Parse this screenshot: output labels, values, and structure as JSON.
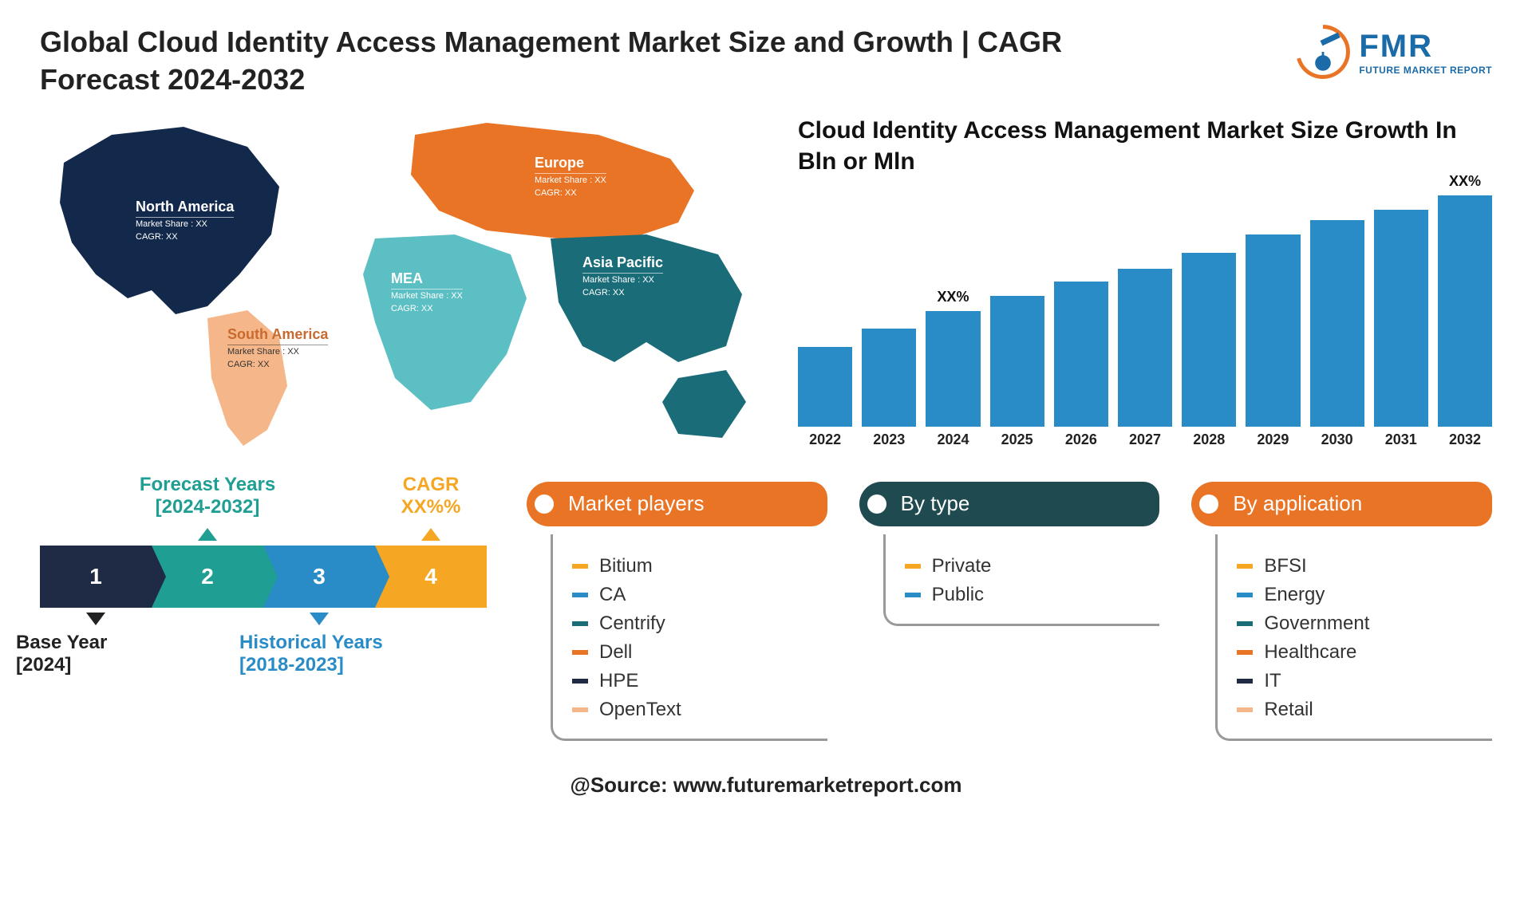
{
  "title": "Global Cloud Identity Access Management Market Size and Growth | CAGR Forecast 2024-2032",
  "logo": {
    "main": "FMR",
    "sub": "FUTURE MARKET REPORT",
    "icon_color_outer": "#e97425",
    "icon_color_inner": "#1a6ba8"
  },
  "map": {
    "regions": [
      {
        "key": "north_america",
        "name": "North America",
        "share": "Market Share : XX",
        "cagr": "CAGR: XX",
        "color": "#13294b"
      },
      {
        "key": "south_america",
        "name": "South America",
        "share": "Market Share : XX",
        "cagr": "CAGR: XX",
        "color": "#f5b78a"
      },
      {
        "key": "europe",
        "name": "Europe",
        "share": "Market Share : XX",
        "cagr": "CAGR: XX",
        "color": "#e97425"
      },
      {
        "key": "mea",
        "name": "MEA",
        "share": "Market Share : XX",
        "cagr": "CAGR: XX",
        "color": "#5bbfc4"
      },
      {
        "key": "asia_pacific",
        "name": "Asia Pacific",
        "share": "Market Share : XX",
        "cagr": "CAGR: XX",
        "color": "#1a6d78"
      }
    ]
  },
  "chart": {
    "title": "Cloud Identity Access Management Market Size Growth In\nBln or Mln",
    "type": "bar",
    "categories": [
      "2022",
      "2023",
      "2024",
      "2025",
      "2026",
      "2027",
      "2028",
      "2029",
      "2030",
      "2031",
      "2032"
    ],
    "values": [
      110,
      135,
      160,
      180,
      200,
      218,
      240,
      265,
      285,
      300,
      320
    ],
    "max_value": 320,
    "bar_color": "#2a8cc7",
    "annotations": [
      {
        "index": 2,
        "text": "XX%"
      },
      {
        "index": 10,
        "text": "XX%"
      }
    ],
    "label_fontsize": 18,
    "label_fontweight": 700
  },
  "timeline": {
    "top_labels": [
      {
        "index": 1,
        "title": "Forecast Years",
        "sub": "[2024-2032]",
        "color": "#1f9e94"
      },
      {
        "index": 3,
        "title": "CAGR",
        "sub": "XX%%",
        "color": "#f5a623"
      }
    ],
    "bottom_labels": [
      {
        "index": 0,
        "title": "Base Year",
        "sub": "[2024]",
        "color": "#222"
      },
      {
        "index": 2,
        "title": "Historical Years",
        "sub": "[2018-2023]",
        "color": "#2a8cc7"
      }
    ],
    "segments": [
      {
        "num": "1",
        "color": "#1f2a44"
      },
      {
        "num": "2",
        "color": "#1f9e94"
      },
      {
        "num": "3",
        "color": "#2a8cc7"
      },
      {
        "num": "4",
        "color": "#f5a623"
      }
    ]
  },
  "columns": [
    {
      "header": "Market players",
      "header_color": "#e97425",
      "items": [
        "Bitium",
        "CA",
        "Centrify",
        "Dell",
        "HPE",
        "OpenText"
      ],
      "tick_colors": [
        "#f5a623",
        "#2a8cc7",
        "#1a6d78",
        "#e97425",
        "#1f2a44",
        "#f5b78a"
      ]
    },
    {
      "header": "By type",
      "header_color": "#1f4a4f",
      "items": [
        "Private",
        "Public"
      ],
      "tick_colors": [
        "#f5a623",
        "#2a8cc7"
      ]
    },
    {
      "header": "By application",
      "header_color": "#e97425",
      "items": [
        "BFSI",
        "Energy",
        "Government",
        "Healthcare",
        "IT",
        "Retail"
      ],
      "tick_colors": [
        "#f5a623",
        "#2a8cc7",
        "#1a6d78",
        "#e97425",
        "#1f2a44",
        "#f5b78a"
      ]
    }
  ],
  "source": "@Source: www.futuremarketreport.com"
}
